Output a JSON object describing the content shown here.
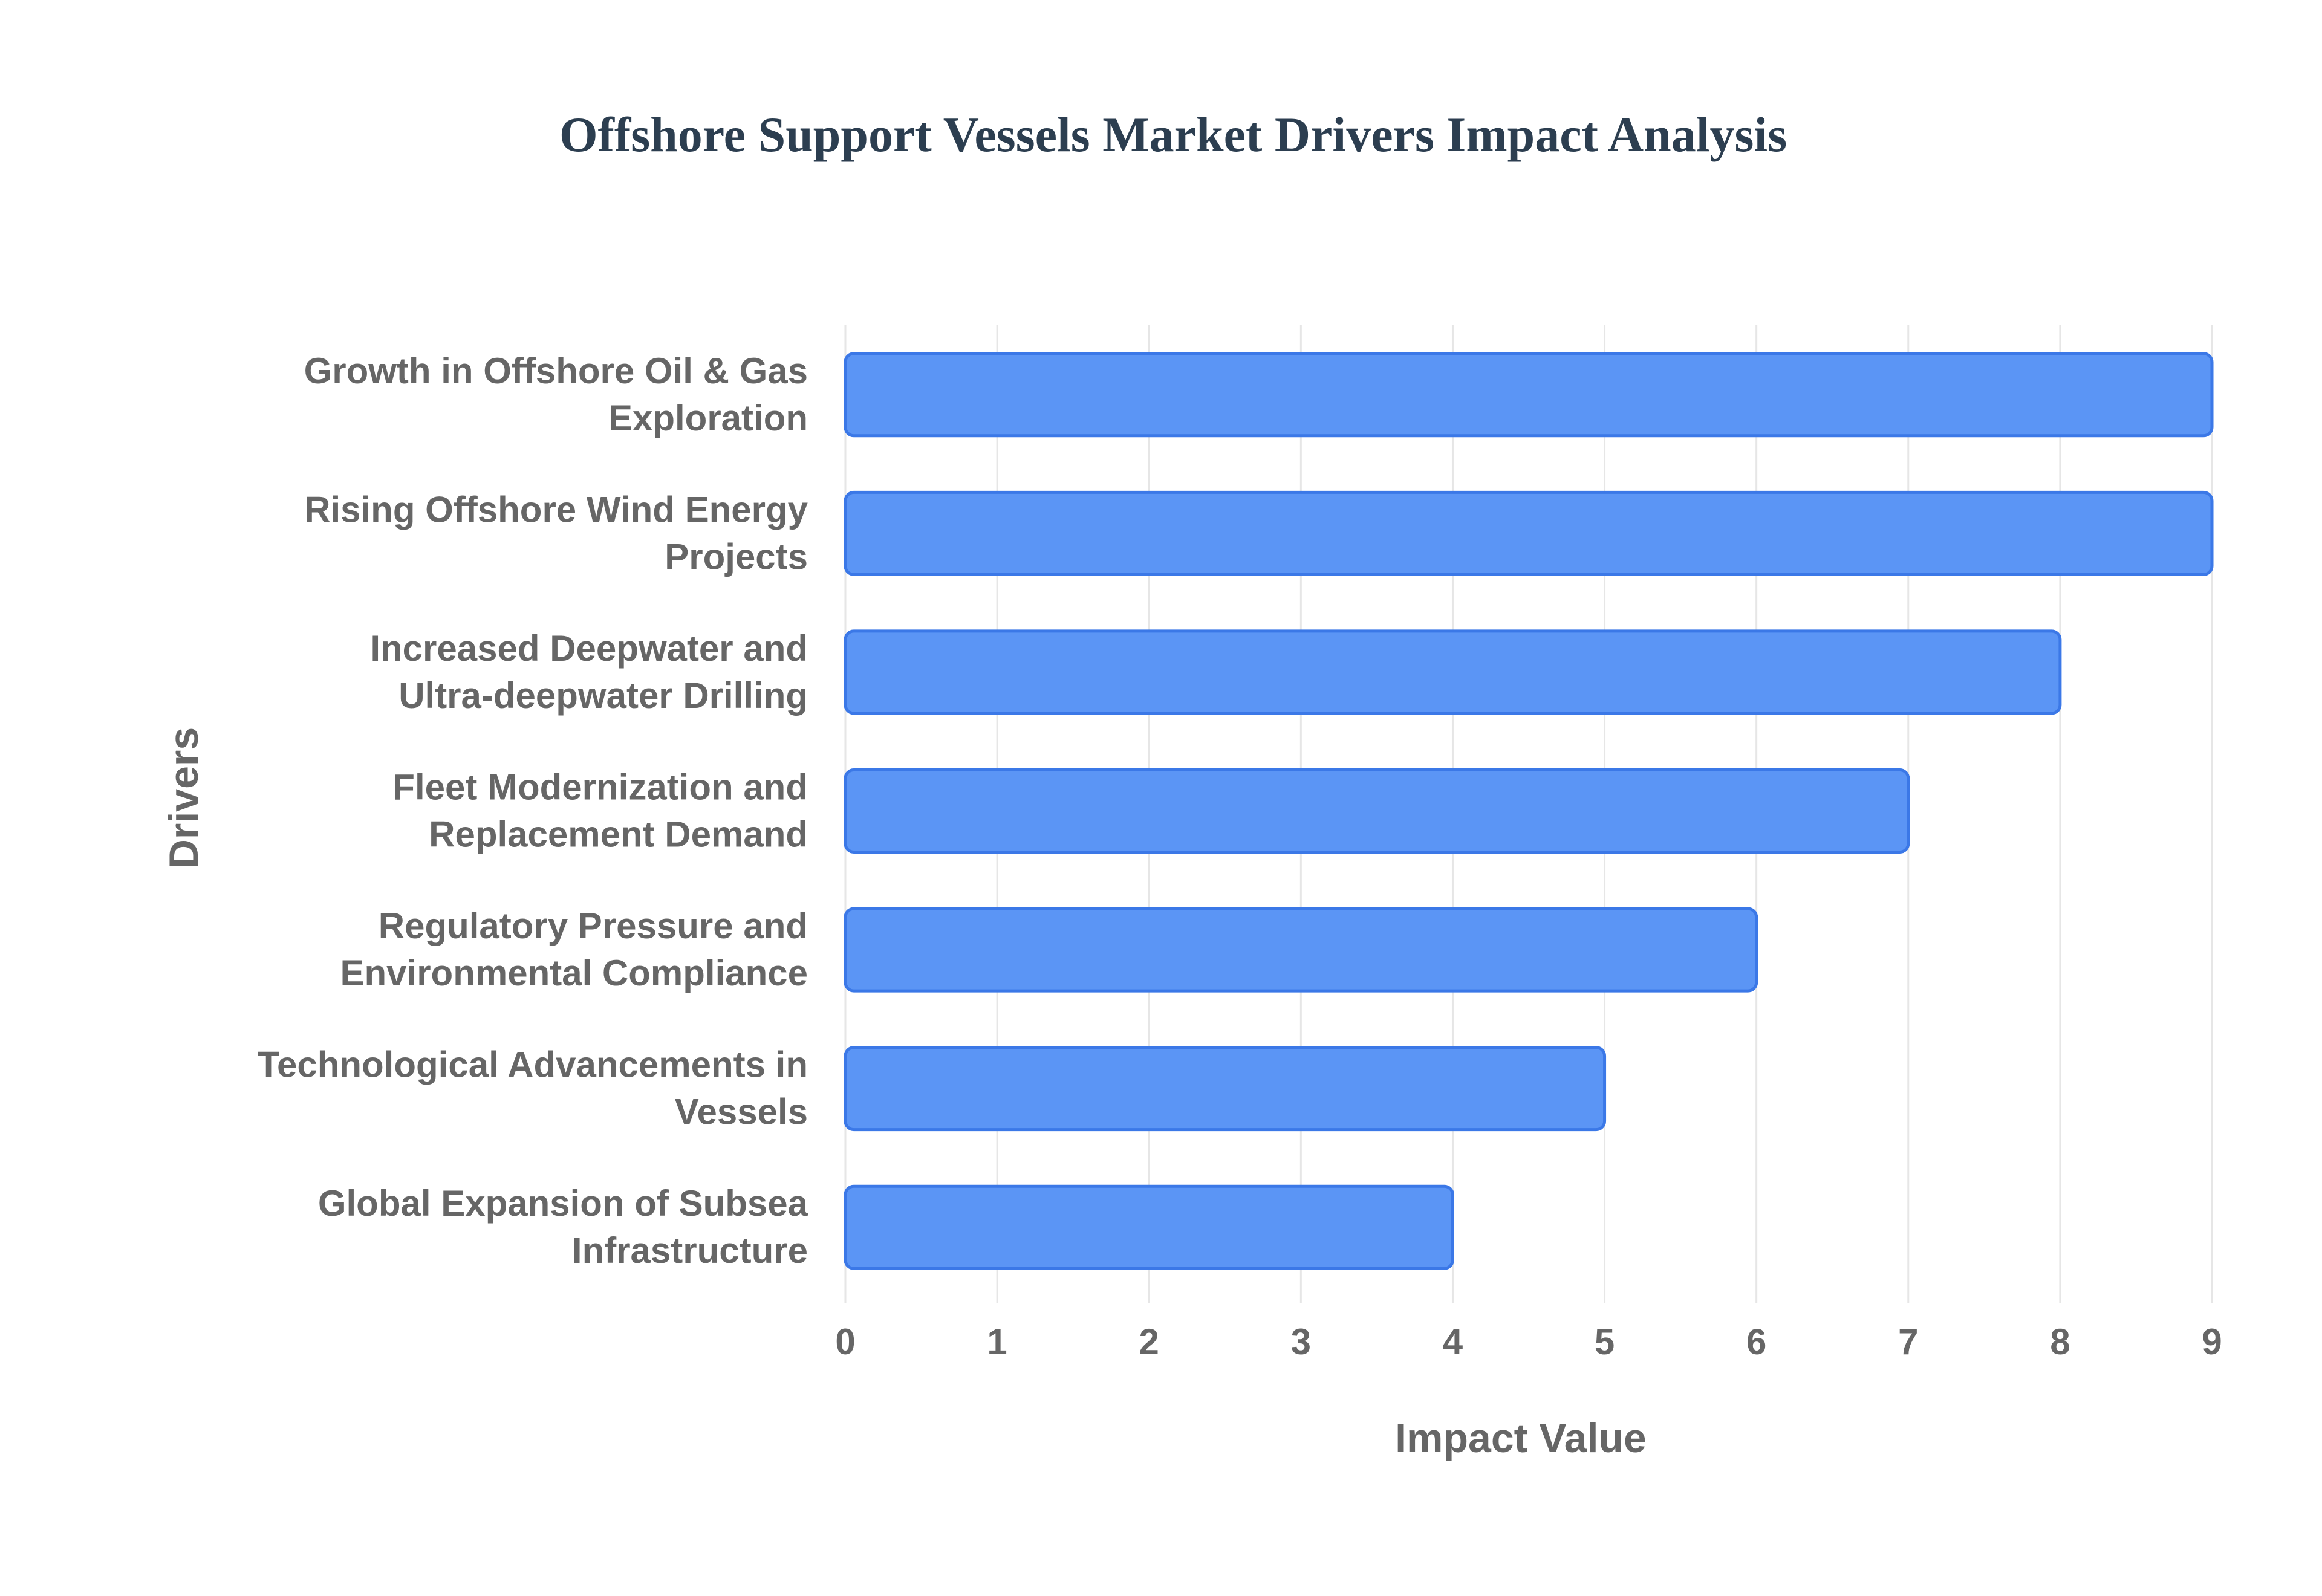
{
  "chart_data": {
    "type": "bar",
    "orientation": "horizontal",
    "title": "Offshore Support Vessels Market Drivers Impact Analysis",
    "xlabel": "Impact Value",
    "ylabel": "Drivers",
    "categories": [
      "Growth in Offshore Oil & Gas Exploration",
      "Rising Offshore Wind Energy Projects",
      "Increased Deepwater and Ultra-deepwater Drilling",
      "Fleet Modernization and Replacement Demand",
      "Regulatory Pressure and Environmental Compliance",
      "Technological Advancements in Vessels",
      "Global Expansion of Subsea Infrastructure"
    ],
    "category_lines": [
      [
        "Growth in Offshore Oil & Gas",
        "Exploration"
      ],
      [
        "Rising Offshore Wind Energy",
        "Projects"
      ],
      [
        "Increased Deepwater and",
        "Ultra-deepwater Drilling"
      ],
      [
        "Fleet Modernization and",
        "Replacement Demand"
      ],
      [
        "Regulatory Pressure and",
        "Environmental Compliance"
      ],
      [
        "Technological Advancements in",
        "Vessels"
      ],
      [
        "Global Expansion of Subsea",
        "Infrastructure"
      ]
    ],
    "values": [
      9,
      9,
      8,
      7,
      6,
      5,
      4
    ],
    "xlim": [
      0,
      9
    ],
    "xticks": [
      "0",
      "1",
      "2",
      "3",
      "4",
      "5",
      "6",
      "7",
      "8",
      "9"
    ],
    "grid": true,
    "legend": "none",
    "colors": {
      "bar_fill": "#5b95f5",
      "bar_stroke": "#3b78e7",
      "grid": "#e6e6e6",
      "text": "#666666",
      "title": "#2c3e50"
    }
  }
}
